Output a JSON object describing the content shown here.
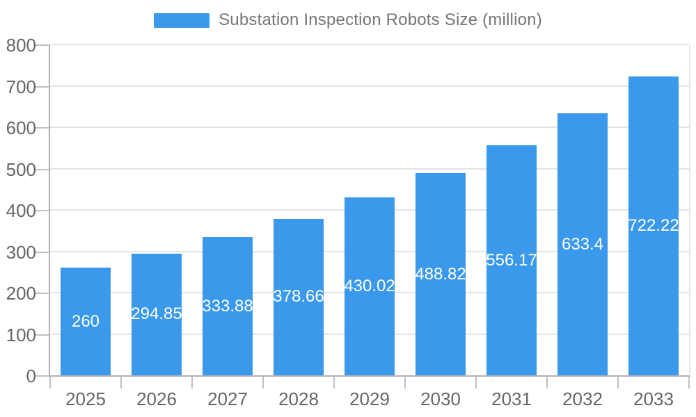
{
  "legend": {
    "label": "Substation Inspection Robots Size (million)"
  },
  "colors": {
    "bar": "#3B99EC",
    "axis_line": "#B3B3B3",
    "grid_line": "#E4E4E4",
    "tick_line": "#C0C0C0",
    "axis_text": "#666666",
    "legend_text": "#757575",
    "value_label_text": "#FFFFFF",
    "background": "#FFFFFF"
  },
  "chart_data": {
    "type": "bar",
    "title": "Substation Inspection Robots Size (million)",
    "categories": [
      "2025",
      "2026",
      "2027",
      "2028",
      "2029",
      "2030",
      "2031",
      "2032",
      "2033"
    ],
    "series": [
      {
        "name": "Substation Inspection Robots Size (million)",
        "values": [
          260,
          294.85,
          333.88,
          378.66,
          430.02,
          488.82,
          556.17,
          633.4,
          722.22
        ]
      }
    ],
    "value_labels": [
      "260",
      "294.85",
      "333.88",
      "378.66",
      "430.02",
      "488.82",
      "556.17",
      "633.4",
      "722.22"
    ],
    "xlabel": "",
    "ylabel": "",
    "ylim": [
      0,
      800
    ],
    "y_ticks": [
      0,
      100,
      200,
      300,
      400,
      500,
      600,
      700,
      800
    ],
    "grid": true,
    "legend_position": "top"
  }
}
